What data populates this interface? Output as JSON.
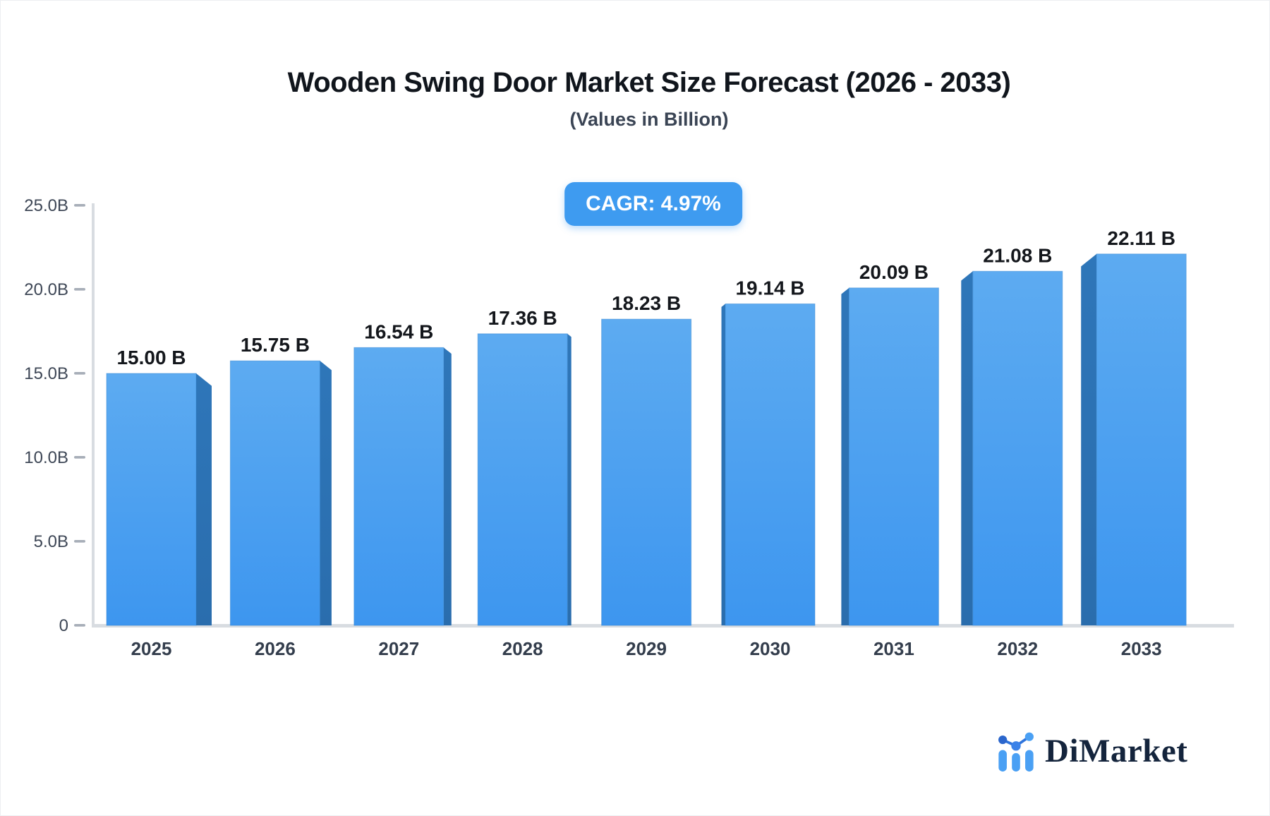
{
  "header": {
    "title": "Wooden Swing Door Market Size Forecast (2026 - 2033)",
    "subtitle": "(Values in Billion)"
  },
  "badge": {
    "label": "CAGR: 4.97%",
    "bg_color": "#3e9bf0",
    "text_color": "#ffffff"
  },
  "chart_data": {
    "type": "bar",
    "title": "Wooden Swing Door Market Size Forecast (2026 - 2033)",
    "subtitle": "(Values in Billion)",
    "categories": [
      "2025",
      "2026",
      "2027",
      "2028",
      "2029",
      "2030",
      "2031",
      "2032",
      "2033"
    ],
    "values": [
      15.0,
      15.75,
      16.54,
      17.36,
      18.23,
      19.14,
      20.09,
      21.08,
      22.11
    ],
    "value_labels": [
      "15.00 B",
      "15.75 B",
      "16.54 B",
      "17.36 B",
      "18.23 B",
      "19.14 B",
      "20.09 B",
      "21.08 B",
      "22.11 B"
    ],
    "y_axis": {
      "ticks": [
        {
          "label": "25.0B",
          "value": 25
        },
        {
          "label": "20.0B",
          "value": 20
        },
        {
          "label": "15.0B",
          "value": 15
        },
        {
          "label": "10.0B",
          "value": 10
        },
        {
          "label": "5.0B",
          "value": 5
        },
        {
          "label": "0",
          "value": 0
        }
      ],
      "ylim": [
        0,
        25
      ]
    },
    "xlabel": "",
    "ylabel": "",
    "grid": false,
    "legend": false,
    "style": "3d-perspective-columns",
    "colors": {
      "bar_face_top": "#5dabf1",
      "bar_face_bottom": "#3d96ef",
      "bar_face_stroke": "#2f80cc",
      "bar_side_top": "#35800000",
      "bar_side": "#2e76b9",
      "bar_side_dark": "#2a6dad",
      "axis_line": "#d8dce1",
      "tick_dash": "#a7aeb8",
      "tick_label": "#3e4756",
      "category_label": "#333d4c",
      "value_label": "#14171c",
      "background": "#ffffff"
    }
  },
  "logo": {
    "icon": "mini-bar-chart-icon",
    "text": "DiMarket",
    "text_color": "#14243c",
    "icon_bar_color": "#4aa0f4",
    "icon_dot_colors": [
      "#2b66cc",
      "#3b82e8",
      "#4aa0f4"
    ]
  }
}
